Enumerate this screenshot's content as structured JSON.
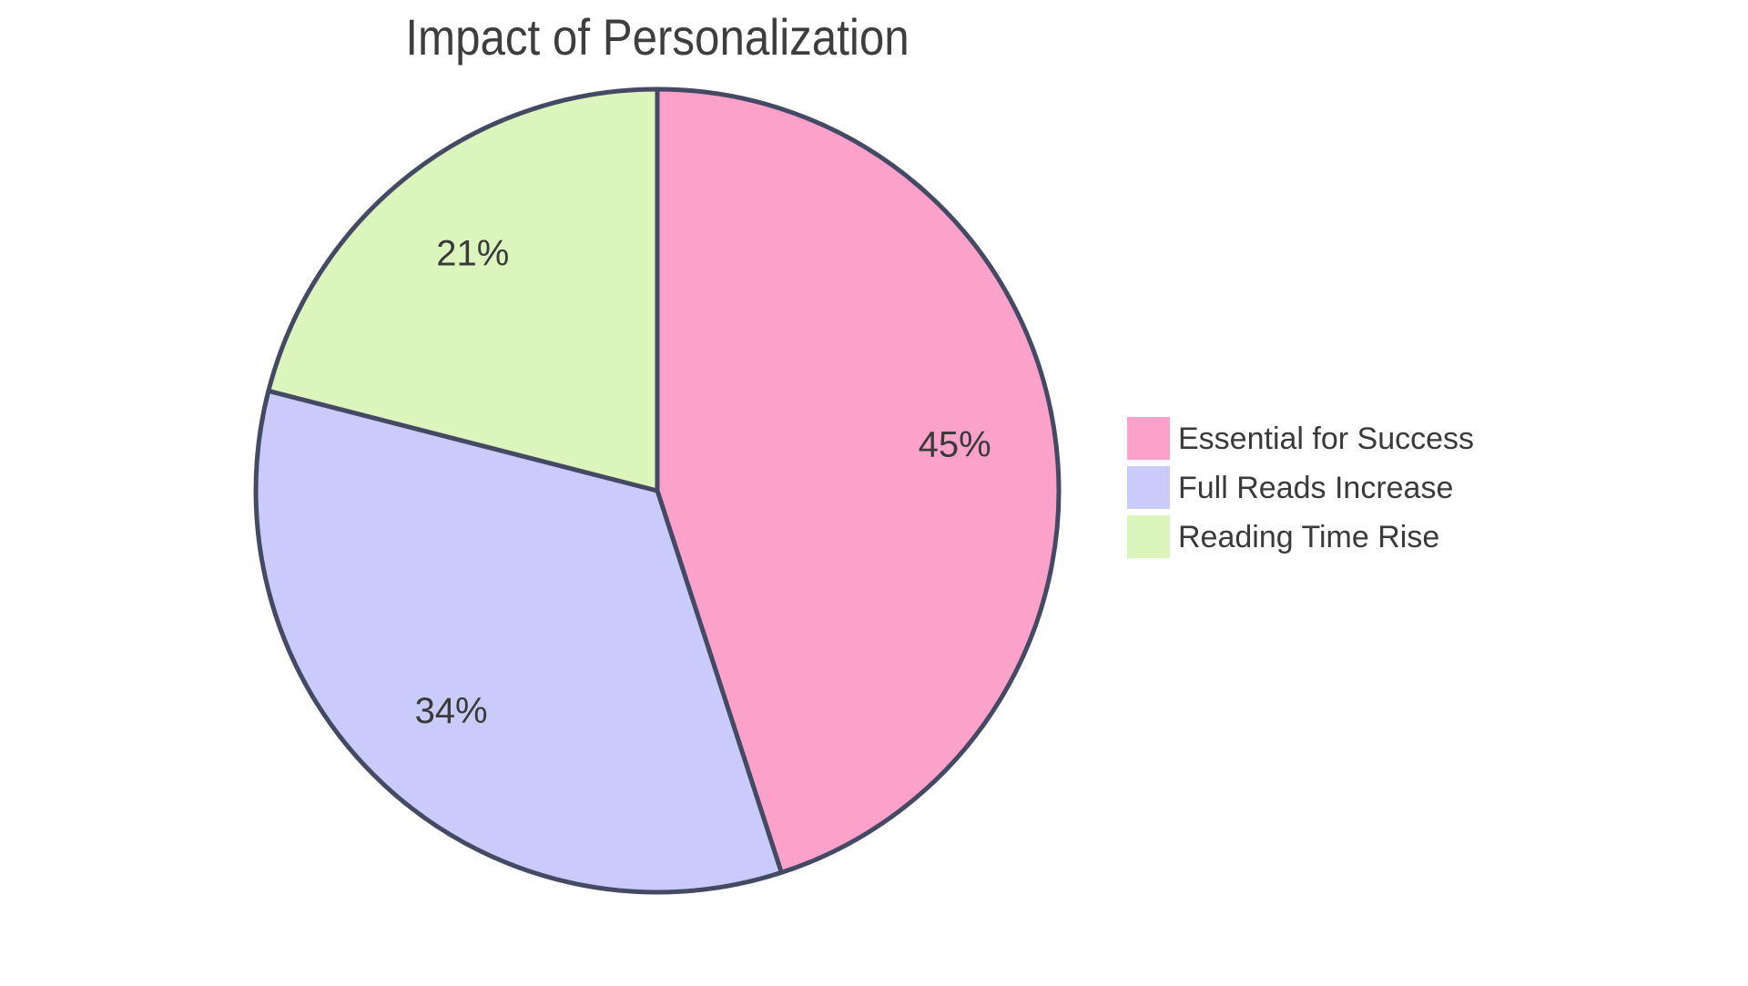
{
  "page": {
    "background": "#FFFFFF"
  },
  "chart_data": {
    "type": "pie",
    "title": "Impact of Personalization",
    "slices": [
      {
        "label": "Essential for Success",
        "value": 45,
        "percent_label": "45%",
        "color": "#FCA2CA"
      },
      {
        "label": "Full Reads Increase",
        "value": 34,
        "percent_label": "34%",
        "color": "#C9CCFA"
      },
      {
        "label": "Reading Time Rise",
        "value": 21,
        "percent_label": "21%",
        "color": "#DBF5BD"
      }
    ],
    "start_angle_deg": 0,
    "direction": "clockwise",
    "legend_position": "right",
    "grid": "off",
    "border_color": "#454A64",
    "label_color": "#3A3A3A",
    "title_color": "#3E3E3E",
    "label_radius_fraction": 0.75
  }
}
